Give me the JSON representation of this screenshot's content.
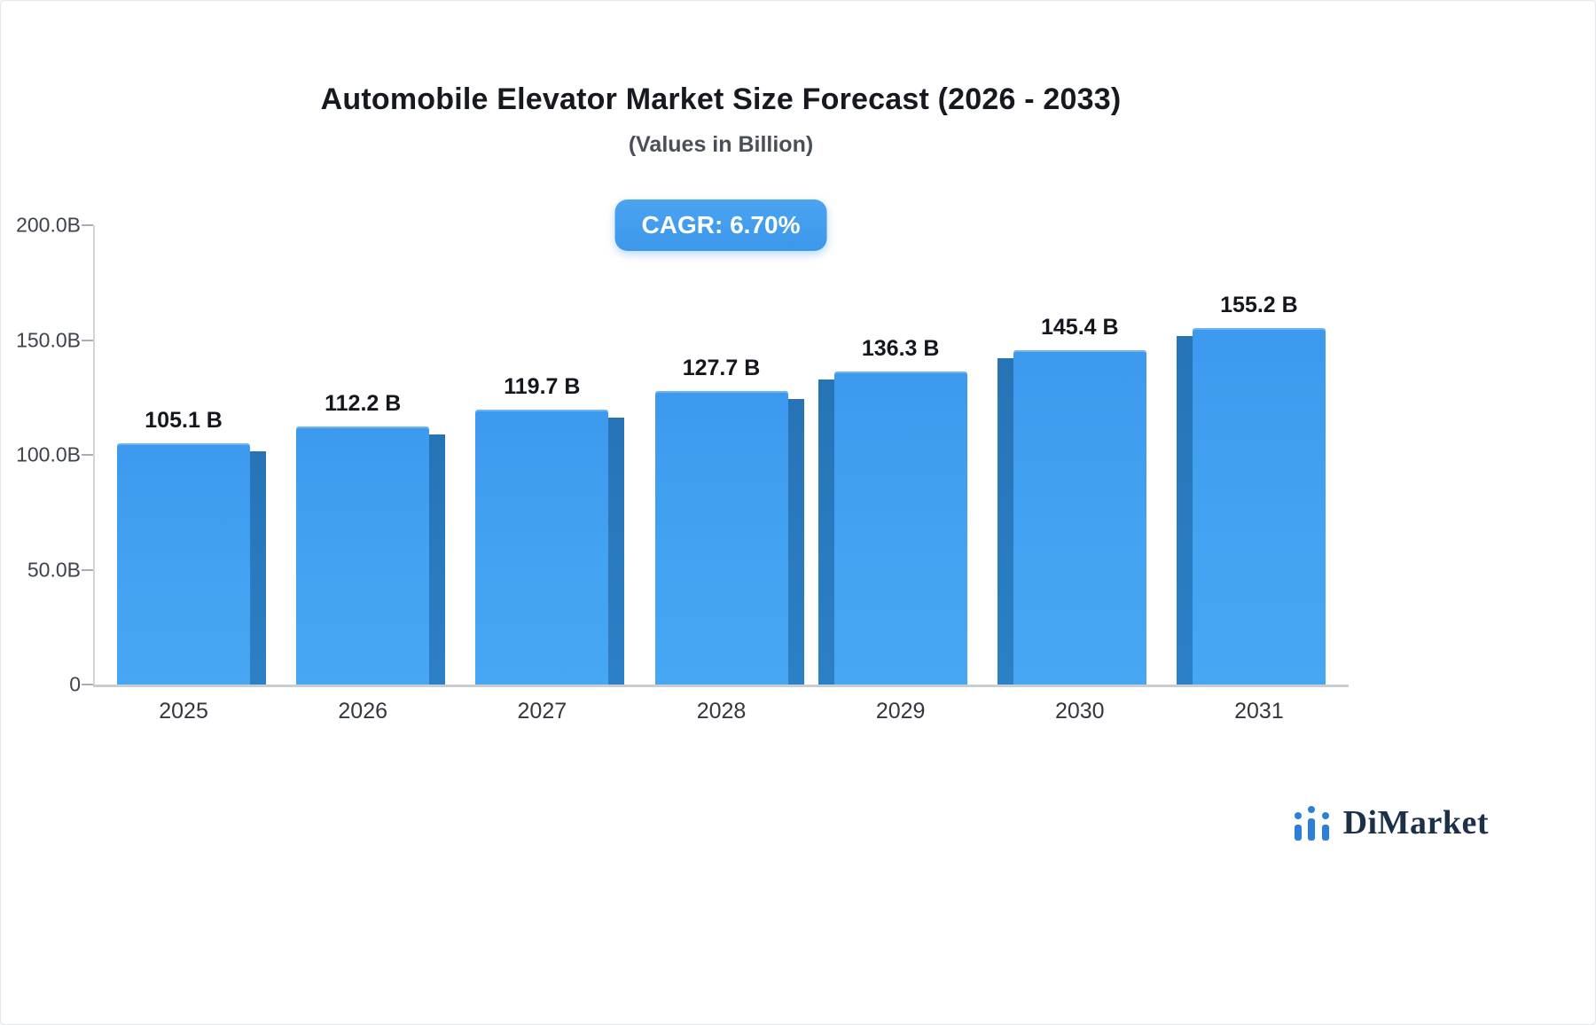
{
  "header": {
    "title": "Automobile Elevator Market Size Forecast (2026 - 2033)",
    "subtitle": "(Values in Billion)"
  },
  "badge": {
    "label": "CAGR: 6.70%"
  },
  "logo": {
    "text": "DiMarket",
    "icon": "dimarket-bars-icon",
    "accent": "#2b7fd9",
    "text_color": "#1d3049"
  },
  "colors": {
    "bar_fill": "#42a0f0",
    "bar_side": "#2a7cc0",
    "badge_bg": "#42a0f0",
    "axis": "#d2d6db",
    "text_dark": "#16191f",
    "text_gray": "#4a4f57"
  },
  "chart_data": {
    "type": "bar",
    "title": "Automobile Elevator Market Size Forecast (2026 - 2033)",
    "subtitle": "(Values in Billion)",
    "xlabel": "",
    "ylabel": "",
    "categories": [
      "2025",
      "2026",
      "2027",
      "2028",
      "2029",
      "2030",
      "2031"
    ],
    "values": [
      105.1,
      112.2,
      119.7,
      127.7,
      136.3,
      145.4,
      155.2
    ],
    "value_labels": [
      "105.1 B",
      "112.2 B",
      "119.7 B",
      "127.7 B",
      "136.3 B",
      "145.4 B",
      "155.2 B"
    ],
    "ylim": [
      0,
      200
    ],
    "yticks": [
      {
        "value": 0,
        "label": "0"
      },
      {
        "value": 50,
        "label": "50.0B"
      },
      {
        "value": 100,
        "label": "100.0B"
      },
      {
        "value": 150,
        "label": "150.0B"
      },
      {
        "value": 200,
        "label": "200.0B"
      }
    ],
    "grid": false,
    "legend": false,
    "annotation": "CAGR: 6.70%"
  }
}
